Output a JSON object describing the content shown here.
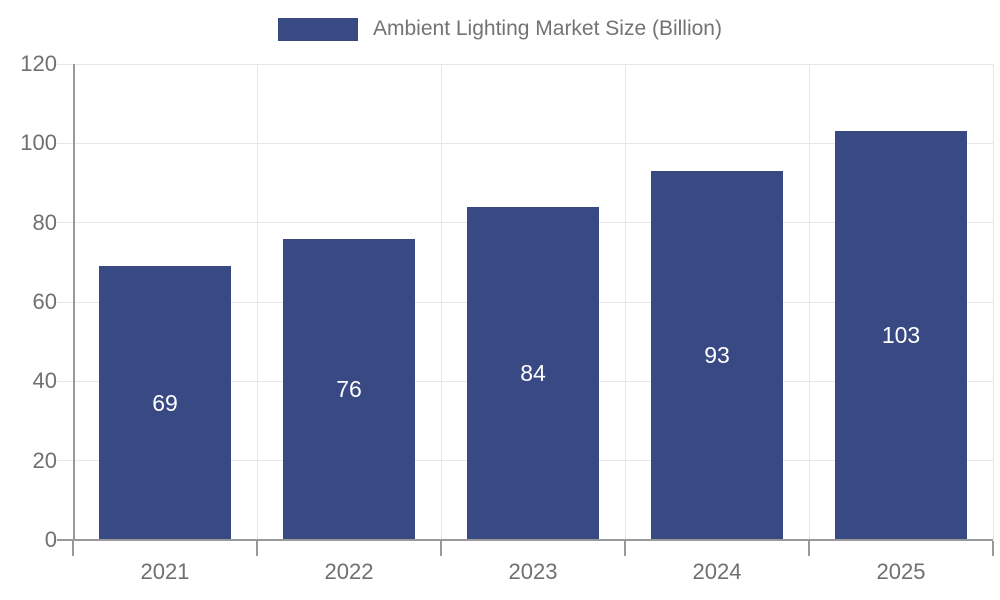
{
  "legend": {
    "label": "Ambient Lighting Market Size (Billion)"
  },
  "chart_data": {
    "type": "bar",
    "title": "",
    "series_name": "Ambient Lighting Market Size (Billion)",
    "categories": [
      "2021",
      "2022",
      "2023",
      "2024",
      "2025"
    ],
    "values": [
      69,
      76,
      84,
      93,
      103
    ],
    "bar_labels": [
      "69",
      "76",
      "84",
      "93",
      "103"
    ],
    "xlabel": "",
    "ylabel": "",
    "ylim": [
      0,
      120
    ],
    "yticks": [
      0,
      20,
      40,
      60,
      80,
      100,
      120
    ],
    "grid": true,
    "legend_position": "top-center",
    "bar_label_position": "inside-center"
  },
  "colors": {
    "bar": "#384984",
    "grid": "#e6e6e6",
    "axis": "#999999",
    "tick_label": "#707070",
    "legend_text": "#737373",
    "bar_label": "#ffffff",
    "background": "#ffffff"
  }
}
